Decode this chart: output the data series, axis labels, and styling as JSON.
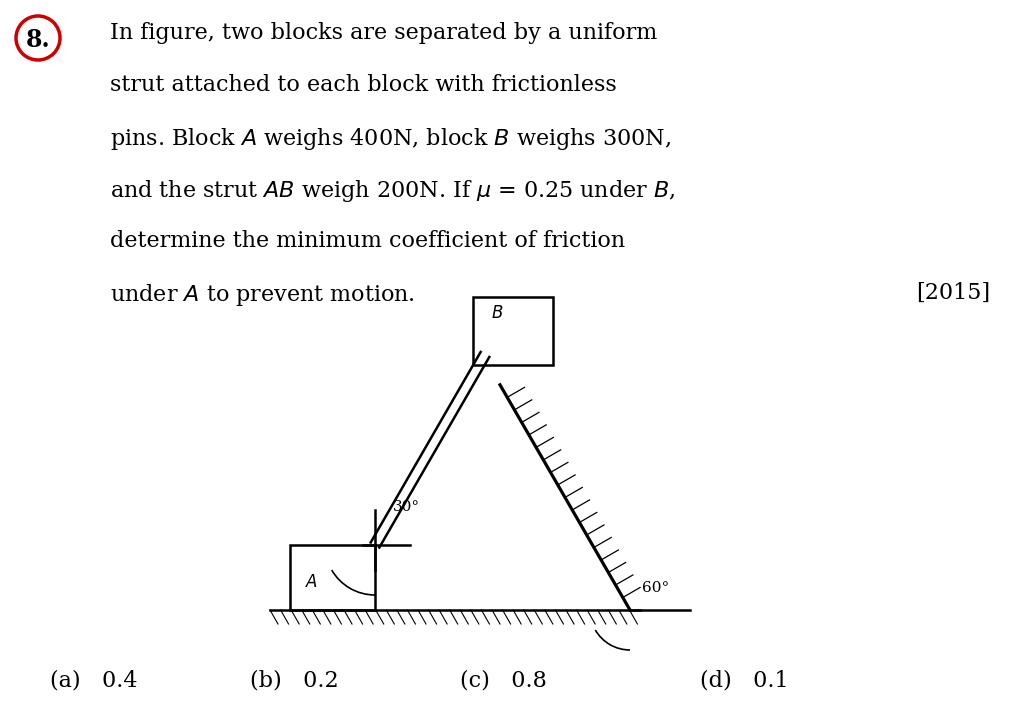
{
  "bg_color": "#ffffff",
  "text_color": "#000000",
  "question_number": "8.",
  "circle_color": "#cc0000",
  "year_label": "[2015]",
  "options": [
    "(a)   0.4",
    "(b)   0.2",
    "(c)   0.8",
    "(d)   0.1"
  ],
  "angle_30_label": "30°",
  "angle_60_label": "60°",
  "label_A": "A",
  "label_B": "B"
}
